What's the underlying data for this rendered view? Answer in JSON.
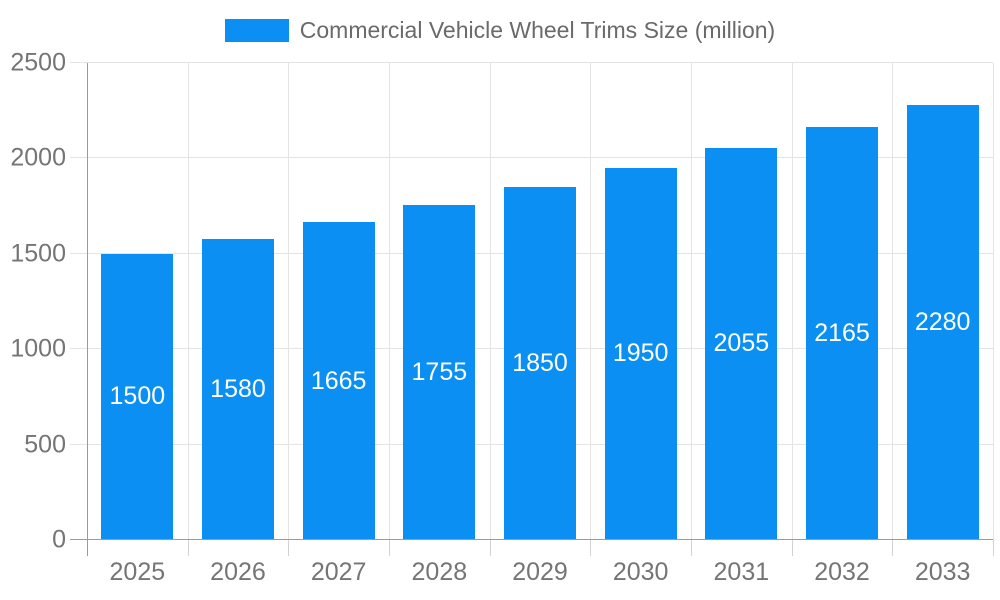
{
  "legend": {
    "label": "Commercial Vehicle Wheel Trims Size (million)"
  },
  "chart_data": {
    "type": "bar",
    "title": "Commercial Vehicle Wheel Trims Size (million)",
    "categories": [
      "2025",
      "2026",
      "2027",
      "2028",
      "2029",
      "2030",
      "2031",
      "2032",
      "2033"
    ],
    "values": [
      1500,
      1580,
      1665,
      1755,
      1850,
      1950,
      2055,
      2165,
      2280
    ],
    "xlabel": "",
    "ylabel": "",
    "ylim": [
      0,
      2500
    ],
    "yticks": [
      0,
      500,
      1000,
      1500,
      2000,
      2500
    ],
    "grid": true,
    "legend_position": "top",
    "bar_labels_inside": true
  },
  "colors": {
    "bar": "#0b8ff2",
    "bar_label": "#ffffff",
    "axis_line": "#9b9b9b",
    "gridline": "#e4e4e4",
    "tick_label": "#757575",
    "legend_text": "#6a6a6a"
  }
}
